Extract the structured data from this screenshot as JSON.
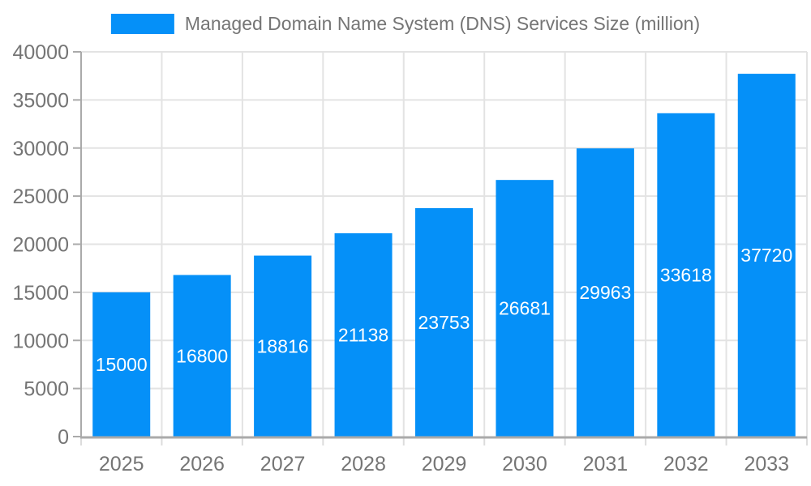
{
  "chart_data": {
    "type": "bar",
    "title": "Managed Domain Name System (DNS) Services Size (million)",
    "categories": [
      "2025",
      "2026",
      "2027",
      "2028",
      "2029",
      "2030",
      "2031",
      "2032",
      "2033"
    ],
    "values": [
      15000,
      16800,
      18816,
      21138,
      23753,
      26681,
      29963,
      33618,
      37720
    ],
    "xlabel": "",
    "ylabel": "",
    "ylim": [
      0,
      40000
    ],
    "yticks": [
      0,
      5000,
      10000,
      15000,
      20000,
      25000,
      30000,
      35000,
      40000
    ],
    "grid": true,
    "legend_position": "top",
    "bar_label_position": "center",
    "colors": {
      "bar": "#0590f8",
      "bar_label": "#ffffff",
      "axis_text": "#757575",
      "grid_line": "#e3e3e3",
      "axis_line": "#aaaaaa",
      "x_tick": "#dcdcdc",
      "background": "#ffffff"
    }
  }
}
